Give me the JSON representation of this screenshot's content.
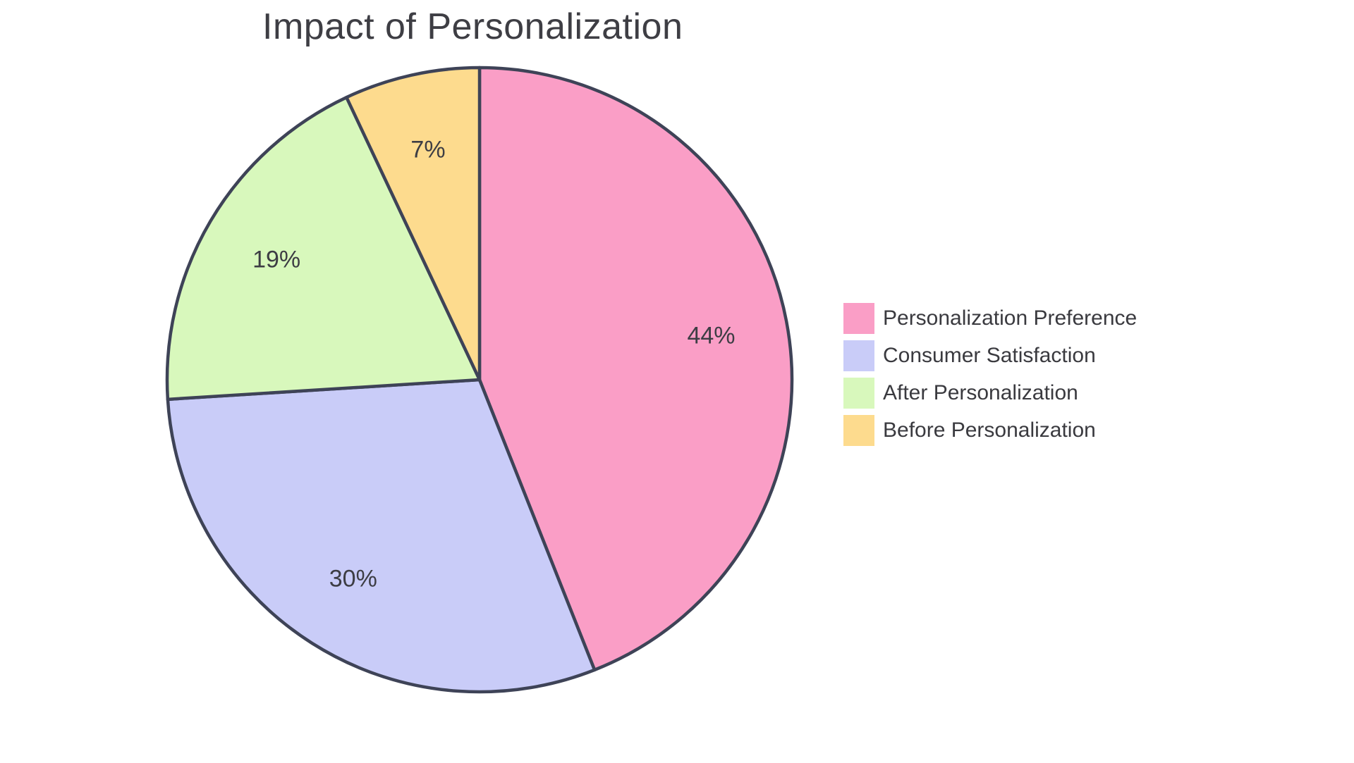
{
  "title": "Impact of Personalization",
  "chart_data": {
    "type": "pie",
    "title": "Impact of Personalization",
    "start_angle_deg": -90,
    "direction": "clockwise",
    "legend_position": "right",
    "stroke_color": "#3e4357",
    "stroke_width": 4.5,
    "label_color": "#3d3d44",
    "slices": [
      {
        "name": "Personalization Preference",
        "value": 44,
        "label": "44%",
        "color": "#fa9ec6"
      },
      {
        "name": "Consumer Satisfaction",
        "value": 30,
        "label": "30%",
        "color": "#c9ccf8"
      },
      {
        "name": "After Personalization",
        "value": 19,
        "label": "19%",
        "color": "#d8f8bc"
      },
      {
        "name": "Before Personalization",
        "value": 7,
        "label": "7%",
        "color": "#fddb8e"
      }
    ]
  }
}
